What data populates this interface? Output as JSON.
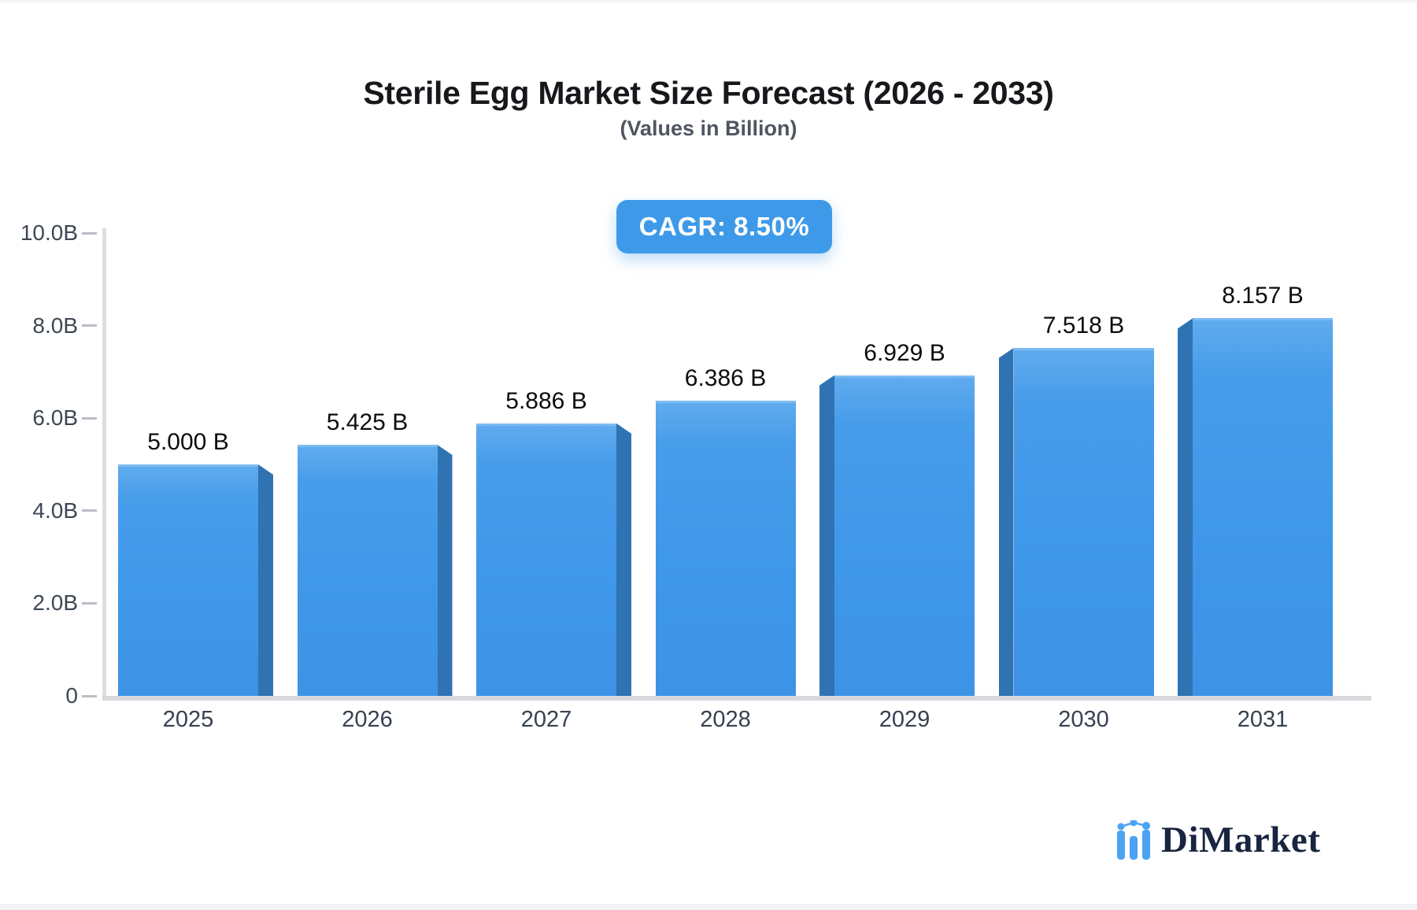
{
  "header": {
    "title": "Sterile Egg Market Size Forecast (2026 - 2033)",
    "subtitle": "(Values in Billion)"
  },
  "badge": {
    "label": "CAGR: 8.50%",
    "bg_color": "#3E9AE9"
  },
  "chart_data": {
    "type": "bar",
    "title": "Sterile Egg Market Size Forecast (2026 - 2033)",
    "subtitle": "(Values in Billion)",
    "annotation": "CAGR: 8.50%",
    "categories": [
      "2025",
      "2026",
      "2027",
      "2028",
      "2029",
      "2030",
      "2031"
    ],
    "values": [
      5.0,
      5.425,
      5.886,
      6.386,
      6.929,
      7.518,
      8.157
    ],
    "value_labels": [
      "5.000 B",
      "5.425 B",
      "5.886 B",
      "6.386 B",
      "6.929 B",
      "7.518 B",
      "8.157 B"
    ],
    "y_ticks": [
      {
        "value": 0,
        "label": "0"
      },
      {
        "value": 2,
        "label": "2.0B"
      },
      {
        "value": 4,
        "label": "4.0B"
      },
      {
        "value": 6,
        "label": "6.0B"
      },
      {
        "value": 8,
        "label": "8.0B"
      },
      {
        "value": 10,
        "label": "10.0B"
      }
    ],
    "ylim": [
      0,
      10
    ],
    "xlabel": "",
    "ylabel": "",
    "legend": null,
    "grid": false,
    "bar_color": "#429AEA",
    "bar_side_color": "#2F73B2",
    "style": "3d-bars, side shading faces outward from center bar"
  },
  "logo": {
    "text": "DiMarket",
    "icon": "mini-bar-chart-icon",
    "icon_color": "#4BA3F3",
    "text_color": "#182440"
  }
}
